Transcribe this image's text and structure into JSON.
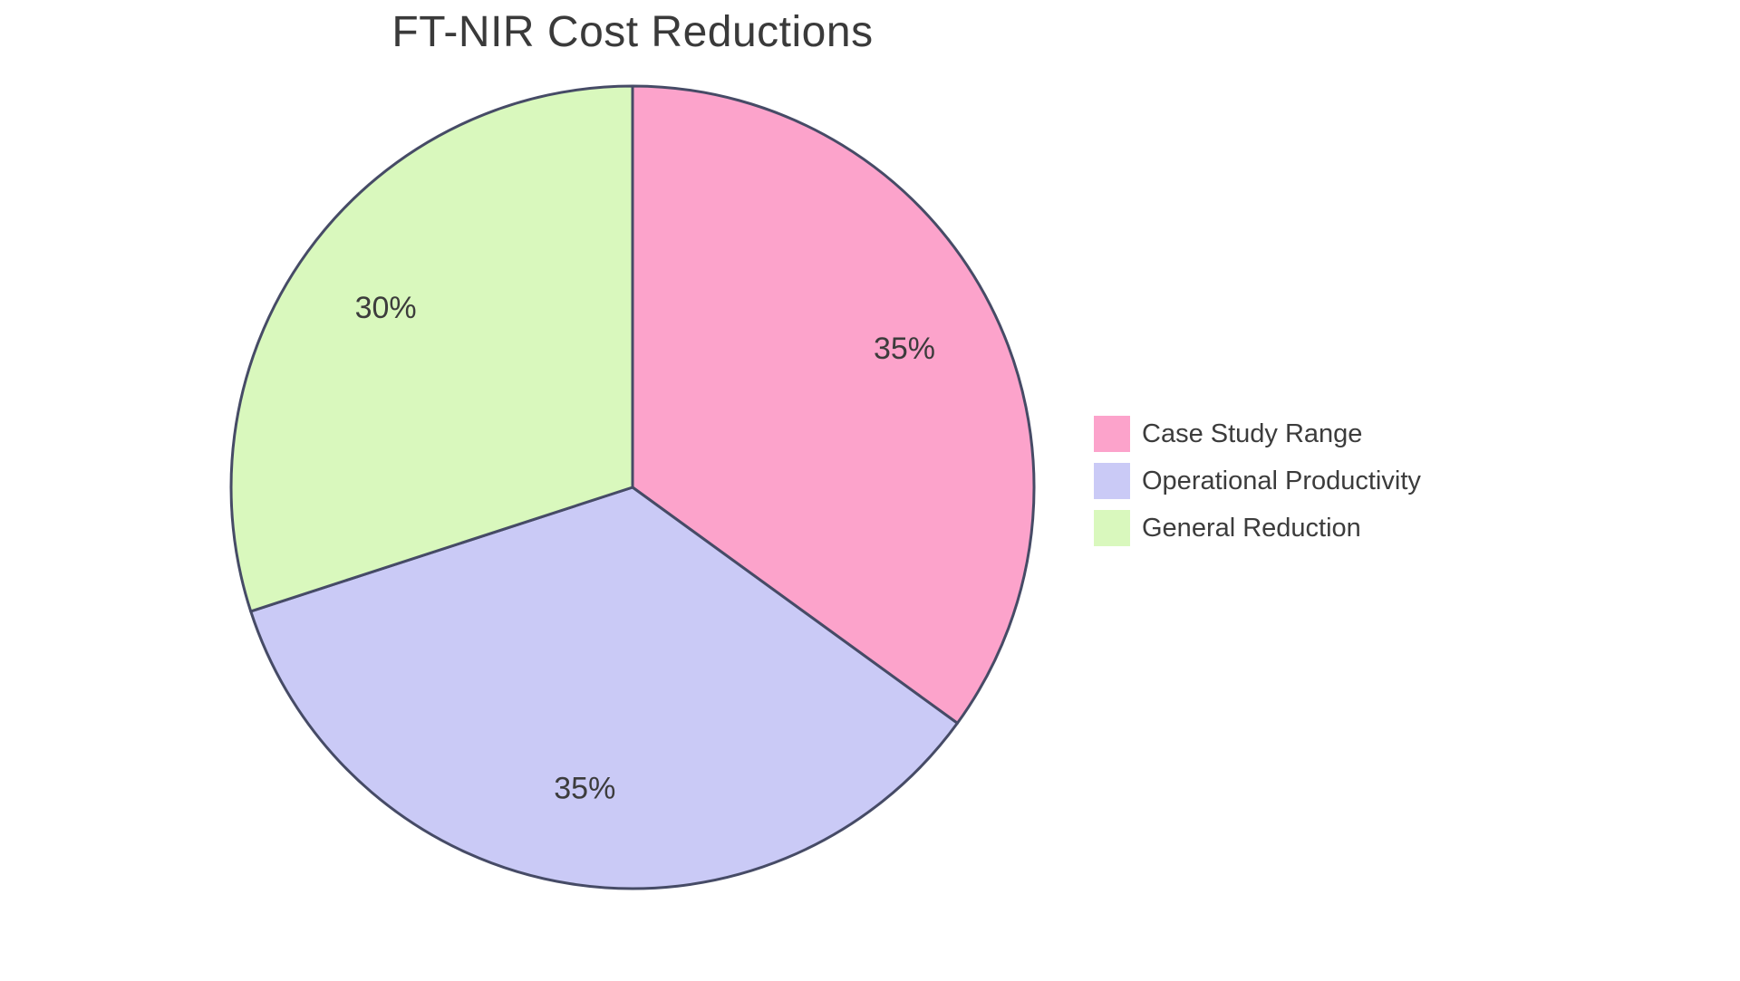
{
  "title": "FT-NIR Cost Reductions",
  "colors": {
    "background": "#ffffff",
    "outline": "#464b66",
    "title_text": "#3a3a3a",
    "label_text": "#3c3c3c",
    "legend_text": "#3c3c3c"
  },
  "chart_data": {
    "type": "pie",
    "title": "FT-NIR Cost Reductions",
    "direction": "clockwise",
    "start_angle_deg": 0,
    "legend_position": "right",
    "labels_inside": true,
    "slices": [
      {
        "label": "Case Study Range",
        "value": 35,
        "percent_label": "35%",
        "color": "#fca3cb"
      },
      {
        "label": "Operational Productivity",
        "value": 35,
        "percent_label": "35%",
        "color": "#cacaf6"
      },
      {
        "label": "General Reduction",
        "value": 30,
        "percent_label": "30%",
        "color": "#d9f8bd"
      }
    ]
  }
}
